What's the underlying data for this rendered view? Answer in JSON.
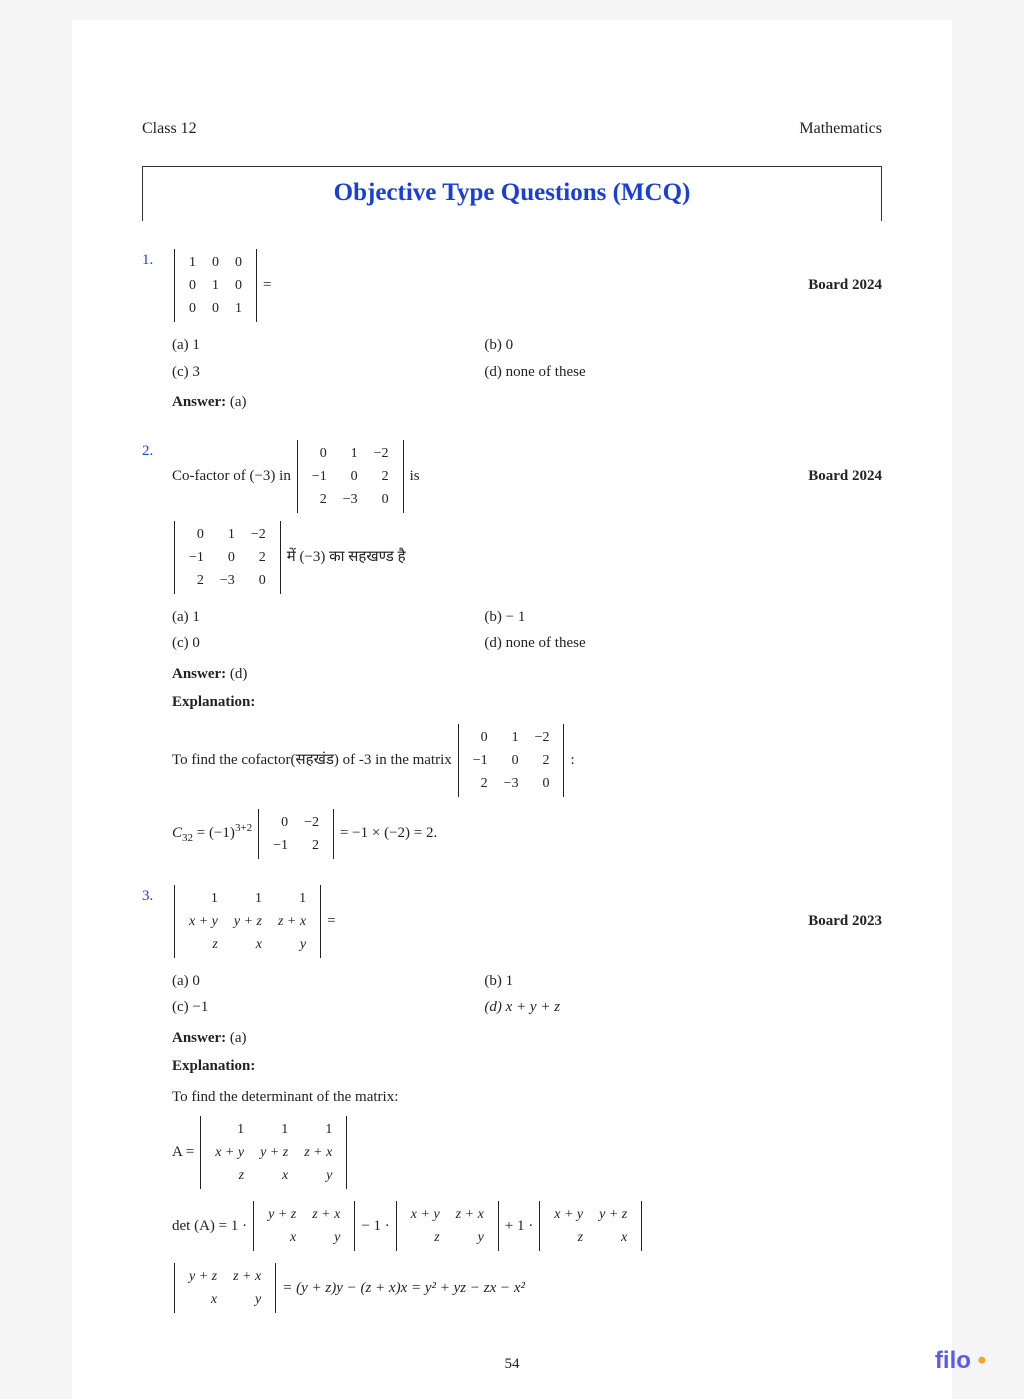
{
  "header": {
    "left": "Class 12",
    "right": "Mathematics"
  },
  "section_title": "Objective Type Questions (MCQ)",
  "page_number": "54",
  "brand": {
    "name": "filo"
  },
  "colors": {
    "title_blue": "#1a3fd6",
    "brand_purple": "#5b5be6",
    "brand_dot": "#f5a623",
    "text": "#222222",
    "page_bg": "#ffffff",
    "outer_bg": "#f5f5f5"
  },
  "q1": {
    "num": "1.",
    "board": "Board 2024",
    "matrix": [
      [
        "1",
        "0",
        "0"
      ],
      [
        "0",
        "1",
        "0"
      ],
      [
        "0",
        "0",
        "1"
      ]
    ],
    "eq_suffix": " =",
    "opts": {
      "a": "(a) 1",
      "b": "(b) 0",
      "c": "(c) 3",
      "d": "(d) none of these"
    },
    "answer_label": "Answer:",
    "answer": "(a)"
  },
  "q2": {
    "num": "2.",
    "board": "Board 2024",
    "stem_prefix": "Co-factor of (−3) in ",
    "stem_suffix": " is",
    "hindi_suffix": " में (−3) का सहखण्ड है",
    "matrix": [
      [
        "0",
        "1",
        "−2"
      ],
      [
        "−1",
        "0",
        "2"
      ],
      [
        "2",
        "−3",
        "0"
      ]
    ],
    "opts": {
      "a": "(a) 1",
      "b": "(b) − 1",
      "c": "(c) 0",
      "d": "(d) none of these"
    },
    "answer_label": "Answer:",
    "answer": "(d)",
    "explanation_label": "Explanation:",
    "exp_line1_pre": "To find the cofactor(सहखंड) of -3 in the matrix ",
    "exp_line1_post": " :",
    "c32_pre": "C",
    "c32_sub": "32",
    "c32_mid": " = (−1)",
    "c32_sup": "3+2",
    "c32_matrix": [
      [
        "0",
        "−2"
      ],
      [
        "−1",
        "2"
      ]
    ],
    "c32_tail": " = −1 × (−2) = 2."
  },
  "q3": {
    "num": "3.",
    "board": "Board 2023",
    "matrix": [
      [
        "1",
        "1",
        "1"
      ],
      [
        "x + y",
        "y + z",
        "z + x"
      ],
      [
        "z",
        "x",
        "y"
      ]
    ],
    "eq_suffix": " =",
    "opts": {
      "a": "(a) 0",
      "b": "(b) 1",
      "c": "(c) −1",
      "d": "(d) x + y + z"
    },
    "answer_label": "Answer:",
    "answer": "(a)",
    "explanation_label": "Explanation:",
    "exp_line1": "To find the determinant of the matrix:",
    "A_label": "A = ",
    "det_pre": "det (A) = 1 · ",
    "m1": [
      [
        "y + z",
        "z + x"
      ],
      [
        "x",
        "y"
      ]
    ],
    "det_mid1": " − 1 · ",
    "m2": [
      [
        "x + y",
        "z + x"
      ],
      [
        "z",
        "y"
      ]
    ],
    "det_mid2": " + 1 · ",
    "m3": [
      [
        "x + y",
        "y + z"
      ],
      [
        "z",
        "x"
      ]
    ],
    "line3_matrix": [
      [
        "y + z",
        "z + x"
      ],
      [
        "x",
        "y"
      ]
    ],
    "line3_tail": " = (y + z)y − (z + x)x = y² + yz − zx − x²"
  }
}
